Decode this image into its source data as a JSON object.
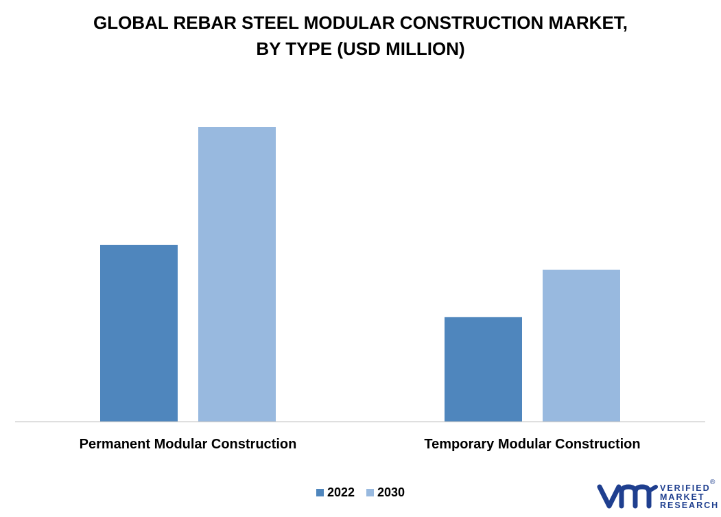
{
  "chart_data": {
    "type": "bar",
    "title_lines": [
      "GLOBAL REBAR STEEL MODULAR CONSTRUCTION MARKET,",
      "BY TYPE (USD MILLION)"
    ],
    "categories": [
      "Permanent Modular Construction",
      "Temporary Modular Construction"
    ],
    "series": [
      {
        "name": "2022",
        "color": "#4f86bd",
        "values": [
          60,
          35.5
        ]
      },
      {
        "name": "2030",
        "color": "#98b9df",
        "values": [
          100,
          51.5
        ]
      }
    ],
    "ylim": [
      0,
      100
    ],
    "grid": false,
    "legend_position": "bottom-center"
  },
  "logo": {
    "lines": [
      "VERIFIED",
      "MARKET",
      "RESEARCH"
    ],
    "mark": "®",
    "icon": "vmr-logo-icon",
    "color": "#1f3f8f"
  }
}
